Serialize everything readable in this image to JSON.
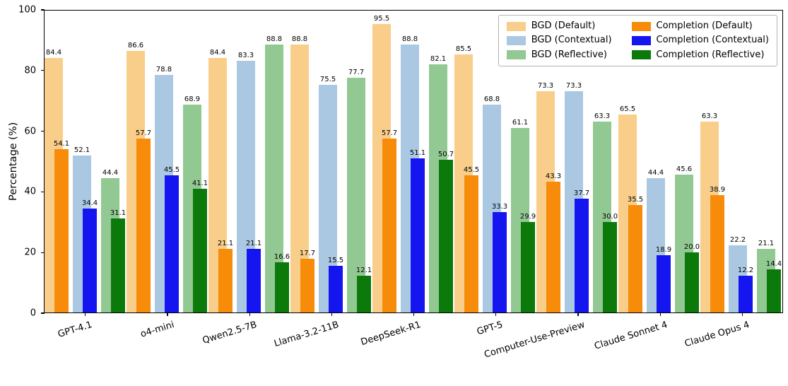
{
  "chart_data": {
    "type": "bar",
    "title": "",
    "xlabel": "",
    "ylabel": "Percentage (%)",
    "ylim": [
      0,
      100
    ],
    "yticks": [
      0,
      20,
      40,
      60,
      80,
      100
    ],
    "grid": false,
    "legend_position": "upper right",
    "categories": [
      "GPT-4.1",
      "o4-mini",
      "Qwen2.5-7B",
      "Llama-3.2-11B",
      "DeepSeek-R1",
      "GPT-5",
      "Computer-Use-Preview",
      "Claude Sonnet 4",
      "Claude Opus 4"
    ],
    "series": [
      {
        "name": "BGD (Default)",
        "color": "#F9CE8A",
        "values": [
          84.4,
          86.6,
          84.4,
          88.8,
          95.5,
          85.5,
          73.3,
          65.5,
          63.3
        ]
      },
      {
        "name": "Completion (Default)",
        "color": "#F78C0A",
        "values": [
          54.1,
          57.7,
          21.1,
          17.7,
          57.7,
          45.5,
          43.3,
          35.5,
          38.9
        ]
      },
      {
        "name": "BGD (Contextual)",
        "color": "#ABC8E2",
        "values": [
          52.1,
          78.8,
          83.3,
          75.5,
          88.8,
          68.8,
          73.3,
          44.4,
          22.2
        ]
      },
      {
        "name": "Completion (Contextual)",
        "color": "#1515F0",
        "values": [
          34.4,
          45.5,
          21.1,
          15.5,
          51.1,
          33.3,
          37.7,
          18.9,
          12.2
        ]
      },
      {
        "name": "BGD (Reflective)",
        "color": "#92C892",
        "values": [
          44.4,
          68.9,
          88.8,
          77.7,
          82.1,
          61.1,
          63.3,
          45.6,
          21.1
        ]
      },
      {
        "name": "Completion (Reflective)",
        "color": "#0B7A0B",
        "values": [
          31.1,
          41.1,
          16.6,
          12.1,
          50.7,
          29.9,
          30.0,
          20.0,
          14.4
        ]
      }
    ],
    "legend_columns": [
      [
        0,
        2,
        4
      ],
      [
        1,
        3,
        5
      ]
    ]
  }
}
